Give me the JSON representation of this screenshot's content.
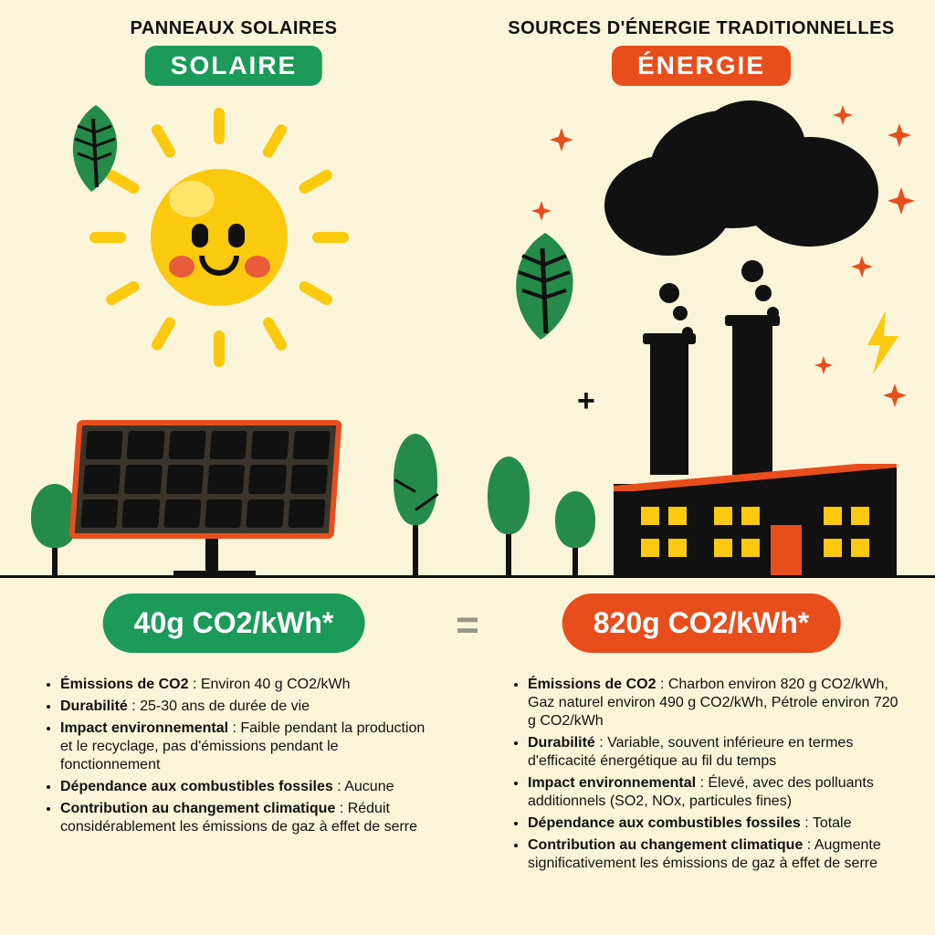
{
  "background_color": "#faf4d9",
  "heading_fontsize": 20,
  "heading_color": "#111111",
  "badge_fontsize": 28,
  "pill_fontsize": 32,
  "equals_color": "#979488",
  "equals_fontsize": 44,
  "bullet_fontsize": 16,
  "bullet_color": "#111111",
  "green": "#1c9a5a",
  "orange": "#e84e1b",
  "yellow": "#fbc90d",
  "sun_highlight": "#ffe66a",
  "cheek": "#e85c3a",
  "tree_green": "#258b4a",
  "left": {
    "heading": "PANNEAUX SOLAIRES",
    "badge": "SOLAIRE",
    "pill": "40g CO2/kWh*",
    "bullets": [
      {
        "label": "Émissions de CO2",
        "text": " : Environ 40 g CO2/kWh"
      },
      {
        "label": "Durabilité",
        "text": " : 25-30 ans de durée de vie"
      },
      {
        "label": "Impact environnemental",
        "text": " : Faible pendant la production et le recyclage, pas d'émissions pendant le fonctionnement"
      },
      {
        "label": "Dépendance aux combustibles fossiles",
        "text": " : Aucune"
      },
      {
        "label": "Contribution au changement climatique",
        "text": " : Réduit considérablement les émissions de gaz à effet de serre"
      }
    ]
  },
  "right": {
    "heading": "SOURCES D'ÉNERGIE TRADITIONNELLES",
    "badge": "ÉNERGIE",
    "pill": "820g CO2/kWh*",
    "bullets": [
      {
        "label": "Émissions de CO2",
        "text": " : Charbon environ 820 g CO2/kWh, Gaz naturel environ 490 g CO2/kWh, Pétrole environ 720 g CO2/kWh"
      },
      {
        "label": "Durabilité",
        "text": " : Variable, souvent inférieure en termes d'efficacité énergétique au fil du temps"
      },
      {
        "label": "Impact environnemental",
        "text": " : Élevé, avec des polluants additionnels (SO2, NOx, particules fines)"
      },
      {
        "label": "Dépendance aux combustibles fossiles",
        "text": " : Totale"
      },
      {
        "label": "Contribution au changement climatique",
        "text": " : Augmente significativement les émissions de gaz à effet de serre"
      }
    ]
  }
}
